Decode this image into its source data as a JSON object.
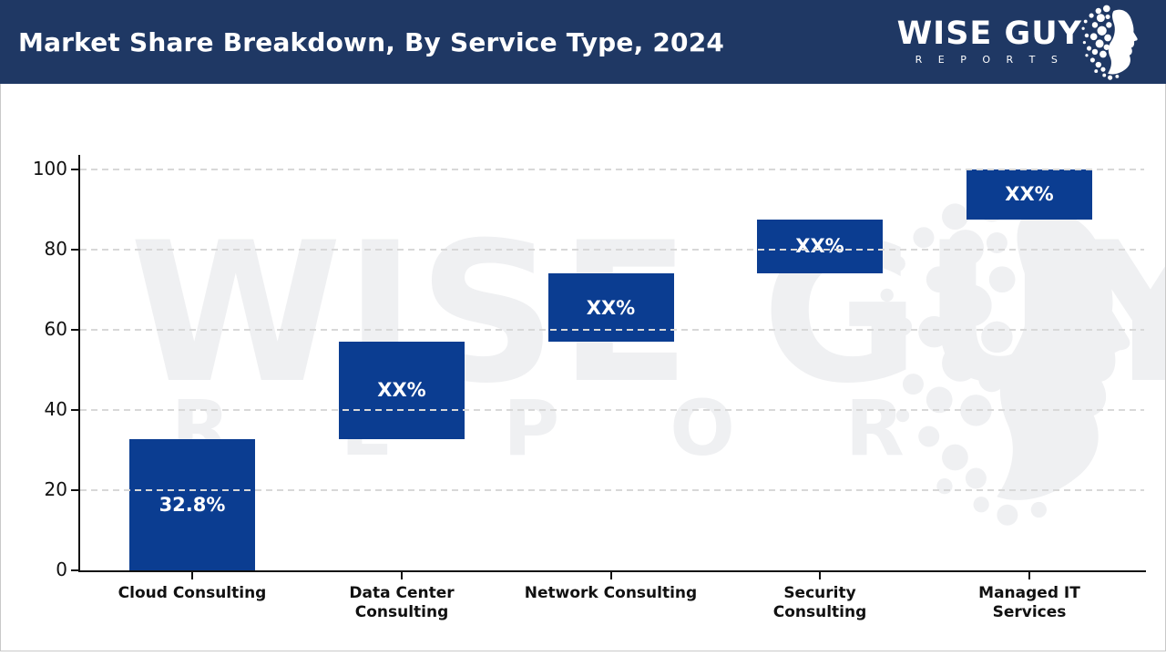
{
  "header": {
    "title": "Market Share Breakdown, By Service Type, 2024",
    "logo": {
      "name": "Wise Guy Reports",
      "line1": "WISE GUY",
      "line2": "R E P O R T S"
    }
  },
  "watermark": {
    "line1": "WISE GUY",
    "line2": "R E P O R T S"
  },
  "colors": {
    "header_bg": "#1f3864",
    "bar": "#0b3d91",
    "grid": "#d8d8d8",
    "axis": "#111111",
    "bar_label_text": "#ffffff",
    "watermark": "#eff0f2",
    "border": "#c9c9c9"
  },
  "chart_data": {
    "type": "bar",
    "subtype": "waterfall",
    "title": "Market Share Breakdown, By Service Type, 2024",
    "categories": [
      "Cloud Consulting",
      "Data Center\nConsulting",
      "Network Consulting",
      "Security\nConsulting",
      "Managed IT\nServices"
    ],
    "bar_labels": [
      "32.8%",
      "XX%",
      "XX%",
      "XX%",
      "XX%"
    ],
    "values_increment": [
      32.8,
      24.2,
      17.0,
      13.6,
      12.4
    ],
    "segments": [
      {
        "category": "Cloud Consulting",
        "start": 0,
        "end": 32.8,
        "label": "32.8%"
      },
      {
        "category": "Data Center Consulting",
        "start": 32.8,
        "end": 57.0,
        "label": "XX%"
      },
      {
        "category": "Network Consulting",
        "start": 57.0,
        "end": 74.0,
        "label": "XX%"
      },
      {
        "category": "Security Consulting",
        "start": 74.0,
        "end": 87.6,
        "label": "XX%"
      },
      {
        "category": "Managed IT Services",
        "start": 87.6,
        "end": 100.0,
        "label": "XX%"
      }
    ],
    "yticks": [
      0,
      20,
      40,
      60,
      80,
      100
    ],
    "ylim": [
      0,
      104
    ],
    "xlabel": "",
    "ylabel": "",
    "grid": true,
    "legend": false,
    "bar_color": "#0b3d91"
  }
}
